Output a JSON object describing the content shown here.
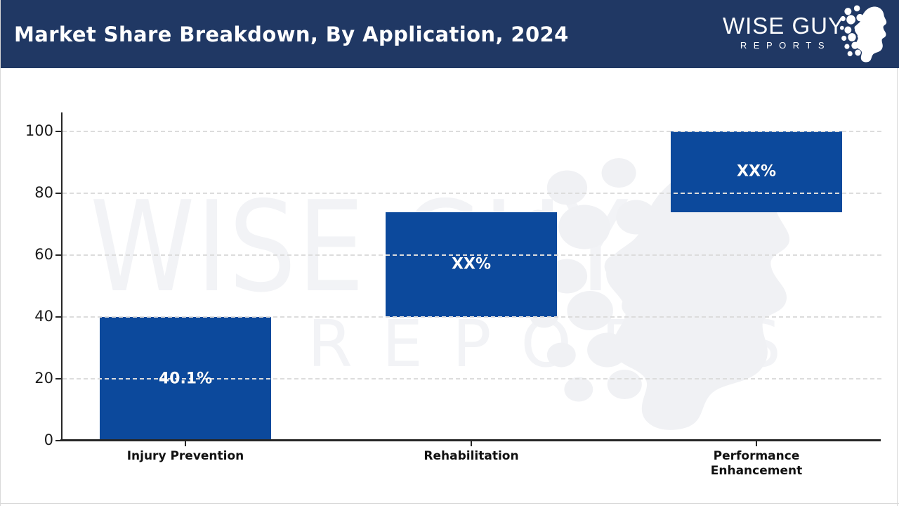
{
  "header": {
    "title": "Market Share Breakdown, By Application, 2024"
  },
  "brand": {
    "line1": "WISE GUY",
    "line2": "REPORTS"
  },
  "chart_data": {
    "type": "bar",
    "variant": "waterfall",
    "title": "Market Share Breakdown, By Application, 2024",
    "categories": [
      "Injury Prevention",
      "Rehabilitation",
      "Performance\nEnhancement"
    ],
    "segments": [
      {
        "category": "Injury Prevention",
        "start": 0,
        "end": 40.1,
        "label": "40.1%"
      },
      {
        "category": "Rehabilitation",
        "start": 40.1,
        "end": 73.9,
        "label": "XX%"
      },
      {
        "category": "Performance\nEnhancement",
        "start": 73.9,
        "end": 100,
        "label": "XX%"
      }
    ],
    "xlabel": "",
    "ylabel": "",
    "yticks": [
      0,
      20,
      40,
      60,
      80,
      100
    ],
    "ylim": [
      0,
      105
    ],
    "grid": "horizontal-dashed",
    "legend": null,
    "bar_color": "#0c499c",
    "value_label_color": "#ffffff"
  },
  "colors": {
    "header_bg": "#203864",
    "bar": "#0c499c",
    "axis": "#262626",
    "gridline": "#dcdcdc",
    "watermark": "#f2f3f6"
  }
}
